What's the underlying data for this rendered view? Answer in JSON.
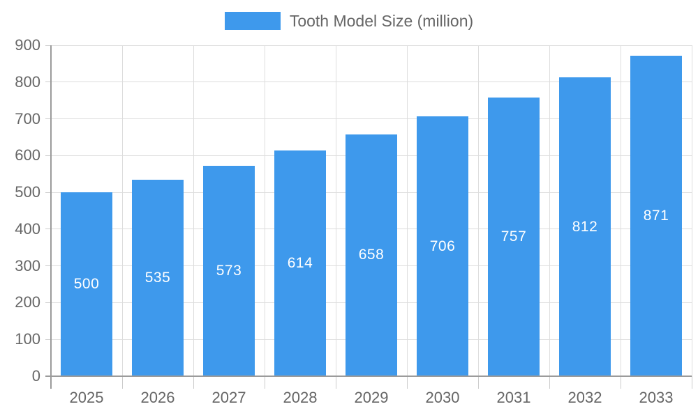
{
  "chart_data": {
    "type": "bar",
    "title": "Tooth Model Size (million)",
    "legend": [
      "Tooth Model Size (million)"
    ],
    "legend_position": "top",
    "categories": [
      "2025",
      "2026",
      "2027",
      "2028",
      "2029",
      "2030",
      "2031",
      "2032",
      "2033"
    ],
    "values": [
      500,
      535,
      573,
      614,
      658,
      706,
      757,
      812,
      871
    ],
    "xlabel": "",
    "ylabel": "",
    "ylim": [
      0,
      900
    ],
    "y_tick_step": 100,
    "y_ticks": [
      0,
      100,
      200,
      300,
      400,
      500,
      600,
      700,
      800,
      900
    ],
    "grid": true,
    "value_labels_inside_bars": true,
    "colors": {
      "bar": "#3E99EC",
      "value_label": "#FFFFFF",
      "axis": "#9B9B9B",
      "gridline": "#DDDDDD",
      "tick": "#CCCCCC",
      "text": "#666666",
      "background": "#FFFFFF"
    }
  }
}
